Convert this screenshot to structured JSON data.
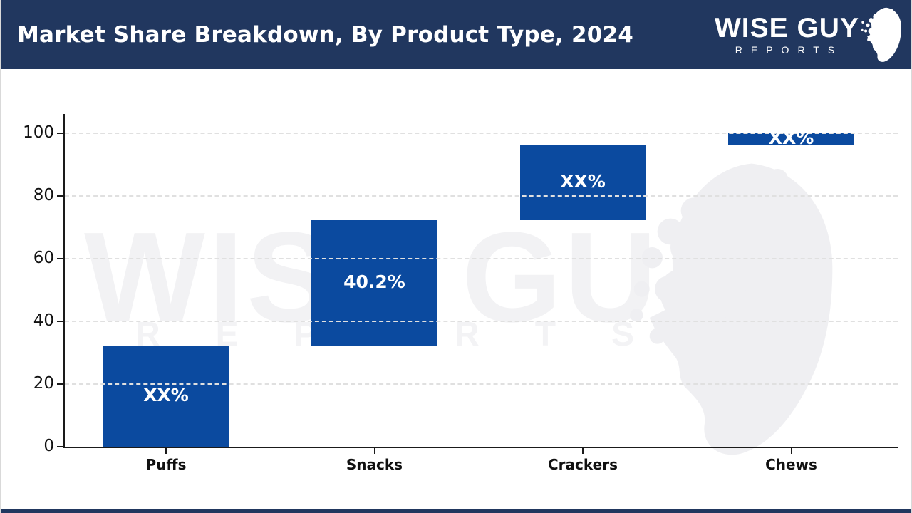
{
  "header": {
    "title": "Market Share Breakdown, By Product Type, 2024",
    "bg_color": "#21375f",
    "logo": {
      "name": "WISE GUY",
      "sub": "REPORTS"
    }
  },
  "watermark": {
    "line1": "WISE GU",
    "line2": "REPORTS"
  },
  "chart_data": {
    "type": "bar",
    "subtype": "waterfall",
    "title": "Market Share Breakdown, By Product Type, 2024",
    "categories": [
      "Puffs",
      "Snacks",
      "Crackers",
      "Chews"
    ],
    "segments": [
      {
        "category": "Puffs",
        "start": 0,
        "end": 32.2,
        "label": "XX%"
      },
      {
        "category": "Snacks",
        "start": 32.2,
        "end": 72.4,
        "label": "40.2%"
      },
      {
        "category": "Crackers",
        "start": 72.4,
        "end": 96.4,
        "label": "XX%"
      },
      {
        "category": "Chews",
        "start": 96.4,
        "end": 100,
        "label": "XX%"
      }
    ],
    "ylim": [
      0,
      100
    ],
    "yticks": [
      0,
      20,
      40,
      60,
      80,
      100
    ],
    "xlabel": "",
    "ylabel": "",
    "grid": "horizontal-dashed",
    "legend": "none",
    "bar_color": "#0b4a9f",
    "bar_label_color": "#ffffff",
    "axis_color": "#1a1a1a",
    "grid_color": "#e0e0e0"
  }
}
